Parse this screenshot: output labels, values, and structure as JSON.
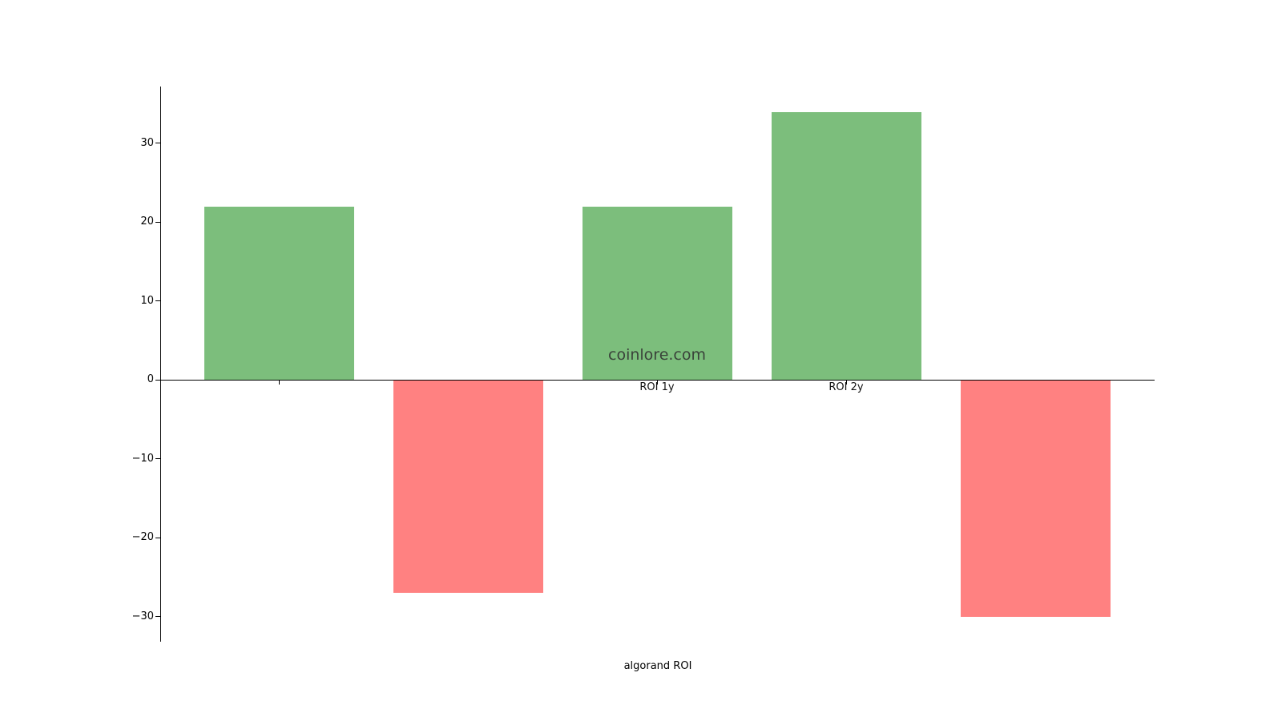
{
  "chart_data": {
    "type": "bar",
    "title": "",
    "xlabel": "algorand ROI",
    "ylabel": "",
    "categories": [
      "",
      "",
      "ROI 1y",
      "ROI 2y",
      ""
    ],
    "values": [
      22,
      -27,
      22,
      34,
      -30
    ],
    "colors": {
      "positive": "#7cbe7c",
      "negative": "#ff8181"
    },
    "bar_colors": [
      "#7cbe7c",
      "#ff8181",
      "#7cbe7c",
      "#7cbe7c",
      "#ff8181"
    ],
    "yticks": [
      30,
      20,
      10,
      0,
      -10,
      -20,
      -30
    ],
    "ytick_labels": [
      "30",
      "20",
      "10",
      "0",
      "−10",
      "−20",
      "−30"
    ],
    "ylim": [
      -33.2,
      37.2
    ],
    "grid": false,
    "legend": null,
    "watermark": "coinlore.com"
  }
}
